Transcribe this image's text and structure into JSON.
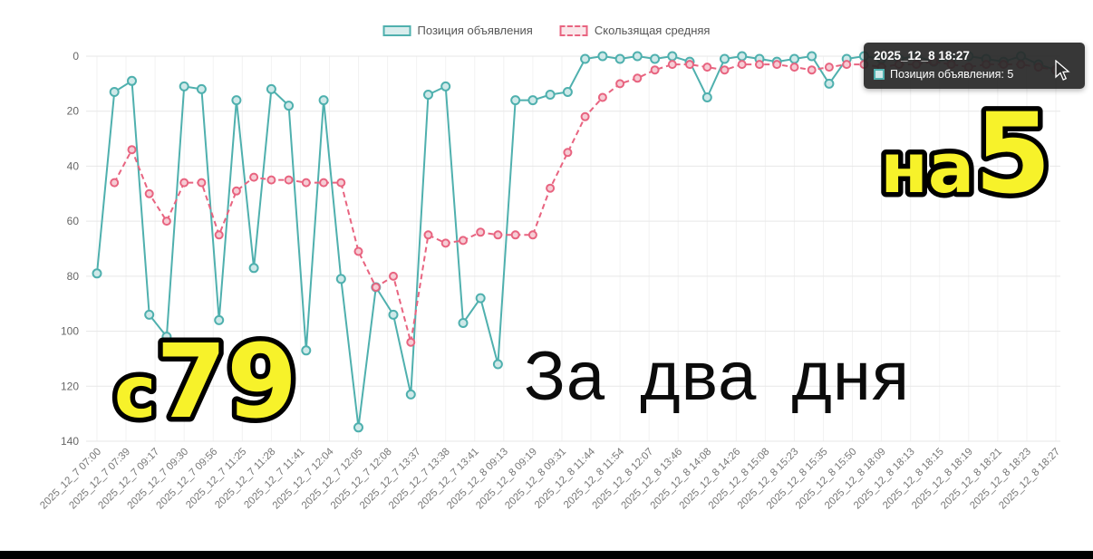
{
  "tooltip": {
    "title": "2025_12_8 18:27",
    "series_label": "Позиция объявления",
    "value": "5",
    "row_text": "Позиция объявления: 5",
    "swatch_color": "#4fb0ae"
  },
  "overlays": {
    "start_prefix": "с",
    "start_value": "79",
    "end_prefix": "на",
    "end_value": "5",
    "caption": "За два дня",
    "highlight_color": "#f7f22a"
  },
  "chart_data": {
    "type": "line",
    "title": "",
    "xlabel": "",
    "ylabel": "",
    "y_inverted": true,
    "ylim": [
      0,
      140
    ],
    "yticks": [
      0,
      20,
      40,
      60,
      80,
      100,
      120,
      140
    ],
    "grid": true,
    "legend_position": "top",
    "x_tick_labels": [
      "2025_12_7 07:00",
      "2025_12_7 07:39",
      "2025_12_7 09:17",
      "2025_12_7 09:30",
      "2025_12_7 09:56",
      "2025_12_7 11:25",
      "2025_12_7 11:28",
      "2025_12_7 11:41",
      "2025_12_7 12:04",
      "2025_12_7 12:05",
      "2025_12_7 12:08",
      "2025_12_7 13:37",
      "2025_12_7 13:38",
      "2025_12_7 13:41",
      "2025_12_8 09:13",
      "2025_12_8 09:19",
      "2025_12_8 09:31",
      "2025_12_8 11:44",
      "2025_12_8 11:54",
      "2025_12_8 12:07",
      "2025_12_8 13:46",
      "2025_12_8 14:08",
      "2025_12_8 14:26",
      "2025_12_8 15:08",
      "2025_12_8 15:23",
      "2025_12_8 15:35",
      "2025_12_8 15:50",
      "2025_12_8 18:09",
      "2025_12_8 18:13",
      "2025_12_8 18:15",
      "2025_12_8 18:19",
      "2025_12_8 18:21",
      "2025_12_8 18:23",
      "2025_12_8 18:27"
    ],
    "series": [
      {
        "name": "Позиция объявления",
        "color": "#4fb0ae",
        "point_fill": "#cfe9e9",
        "dashed": false,
        "values": [
          79,
          13,
          9,
          94,
          102,
          11,
          12,
          96,
          16,
          77,
          12,
          18,
          107,
          16,
          81,
          135,
          84,
          94,
          123,
          14,
          11,
          97,
          88,
          112,
          16,
          16,
          14,
          13,
          1,
          0,
          1,
          0,
          1,
          0,
          2,
          15,
          1,
          0,
          1,
          2,
          1,
          0,
          10,
          1,
          0,
          1,
          1,
          0,
          2,
          1,
          0,
          1,
          2,
          0,
          3,
          5
        ]
      },
      {
        "name": "Скользящая средняя",
        "color": "#e86480",
        "point_fill": "#f6ccd4",
        "dashed": true,
        "values": [
          null,
          46,
          34,
          50,
          60,
          46,
          46,
          65,
          49,
          44,
          45,
          45,
          46,
          46,
          46,
          71,
          84,
          80,
          104,
          65,
          68,
          67,
          64,
          65,
          65,
          65,
          48,
          35,
          22,
          15,
          10,
          8,
          5,
          3,
          3,
          4,
          5,
          3,
          3,
          3,
          4,
          5,
          4,
          3,
          3,
          4,
          3,
          3,
          2,
          3,
          4,
          3,
          3,
          3,
          4,
          5
        ]
      }
    ]
  }
}
